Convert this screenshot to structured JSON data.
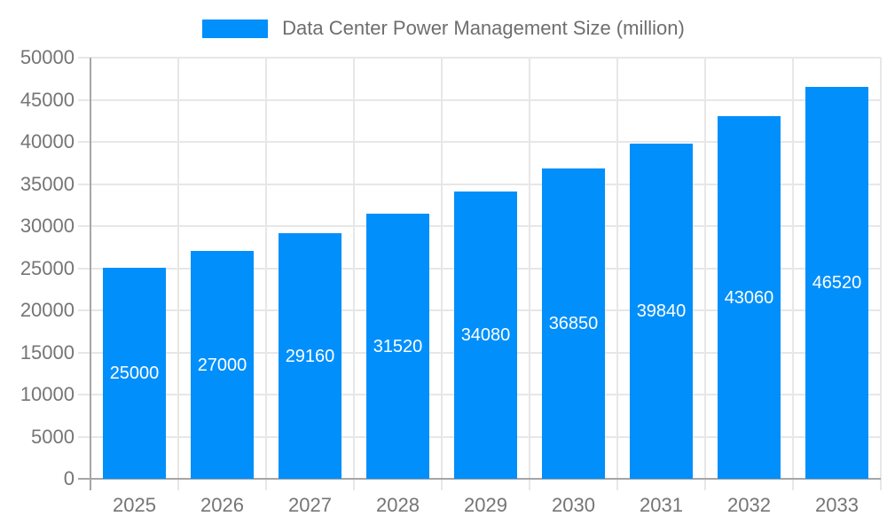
{
  "legend": {
    "label": "Data Center Power Management Size (million)",
    "swatch_color": "#008FFB"
  },
  "chart_data": {
    "type": "bar",
    "title": "Data Center Power Management Size (million)",
    "categories": [
      "2025",
      "2026",
      "2027",
      "2028",
      "2029",
      "2030",
      "2031",
      "2032",
      "2033"
    ],
    "values": [
      25000,
      27000,
      29160,
      31520,
      34080,
      36850,
      39840,
      43060,
      46520
    ],
    "xlabel": "",
    "ylabel": "",
    "ylim": [
      0,
      50000
    ],
    "y_ticks": [
      0,
      5000,
      10000,
      15000,
      20000,
      25000,
      30000,
      35000,
      40000,
      45000,
      50000
    ],
    "grid": true,
    "legend_position": "top-center",
    "bar_color": "#008FFB",
    "data_label_color": "#ffffff",
    "data_label_position": "middle"
  },
  "colors": {
    "background": "#ffffff",
    "bar": "#008FFB",
    "grid": "#e7e7e7",
    "axis": "#a6a6a6",
    "axis_label": "#757575",
    "legend_text": "#6e6e6e",
    "data_label": "#ffffff"
  }
}
